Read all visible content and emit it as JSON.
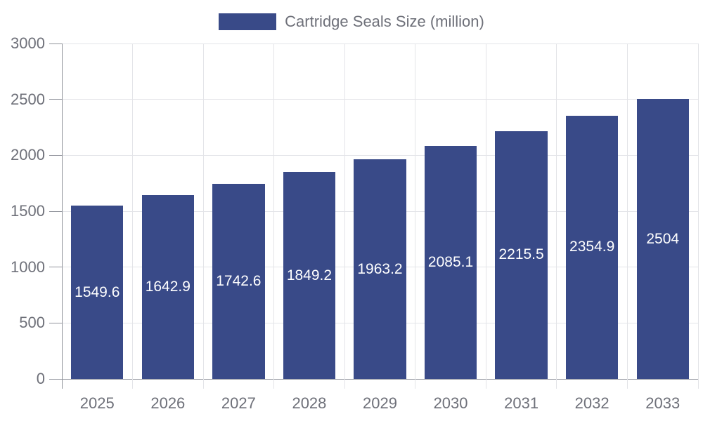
{
  "chart_data": {
    "type": "bar",
    "title": "Cartridge Seals Size (million)",
    "categories": [
      "2025",
      "2026",
      "2027",
      "2028",
      "2029",
      "2030",
      "2031",
      "2032",
      "2033"
    ],
    "values": [
      1549.6,
      1642.9,
      1742.6,
      1849.2,
      1963.2,
      2085.1,
      2215.5,
      2354.9,
      2504
    ],
    "series": [
      {
        "name": "Cartridge Seals Size (million)",
        "values": [
          1549.6,
          1642.9,
          1742.6,
          1849.2,
          1963.2,
          2085.1,
          2215.5,
          2354.9,
          2504
        ]
      }
    ],
    "xlabel": "",
    "ylabel": "",
    "ylim": [
      0,
      3000
    ],
    "yticks": [
      0,
      500,
      1000,
      1500,
      2000,
      2500,
      3000
    ],
    "grid": true,
    "legend_position": "top-center",
    "value_labels_position": "inside-middle",
    "bar_color": "#394A88",
    "value_label_color": "#FFFFFF",
    "axis_text_color": "#6E7079",
    "axis_line_color": "#90939B",
    "grid_color": "#E3E4E8"
  }
}
